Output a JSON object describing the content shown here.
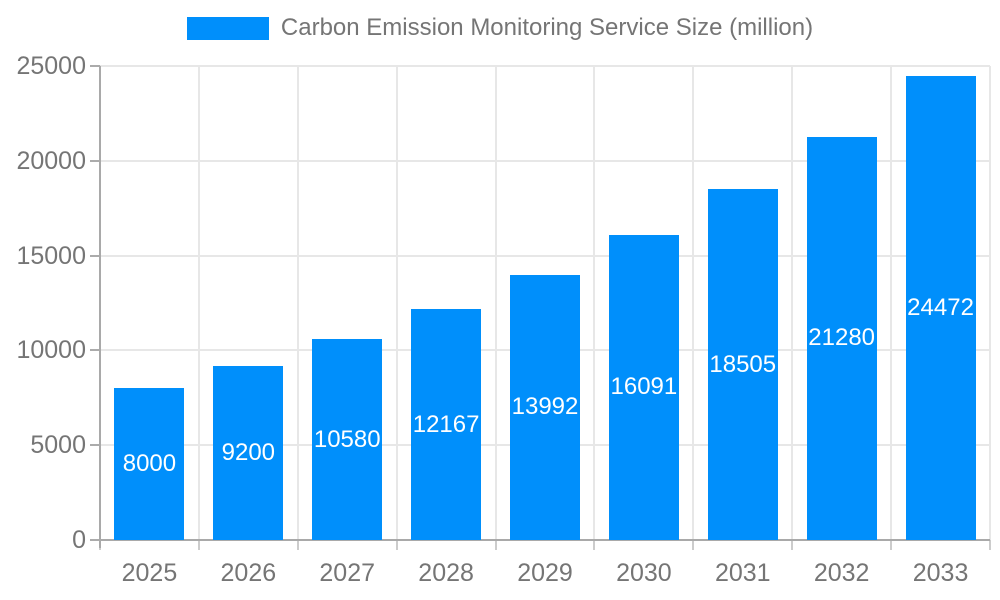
{
  "legend": {
    "label": "Carbon Emission Monitoring Service Size (million)"
  },
  "colors": {
    "bar": "#008FFB",
    "bar_label": "#ffffff",
    "axis_text": "#757575",
    "grid_line": "#e7e7e7",
    "axis_line": "#a9a9a9",
    "background": "#ffffff"
  },
  "chart_data": {
    "type": "bar",
    "title": "Carbon Emission Monitoring Service Size (million)",
    "categories": [
      "2025",
      "2026",
      "2027",
      "2028",
      "2029",
      "2030",
      "2031",
      "2032",
      "2033"
    ],
    "values": [
      8000,
      9200,
      10580,
      12167,
      13992,
      16091,
      18505,
      21280,
      24472
    ],
    "series": [
      {
        "name": "Carbon Emission Monitoring Service Size (million)",
        "values": [
          8000,
          9200,
          10580,
          12167,
          13992,
          16091,
          18505,
          21280,
          24472
        ]
      }
    ],
    "xlabel": "",
    "ylabel": "",
    "ylim": [
      0,
      25000
    ],
    "yticks": [
      0,
      5000,
      10000,
      15000,
      20000,
      25000
    ],
    "grid": true,
    "legend_position": "top-center",
    "value_labels": "inside-center"
  }
}
